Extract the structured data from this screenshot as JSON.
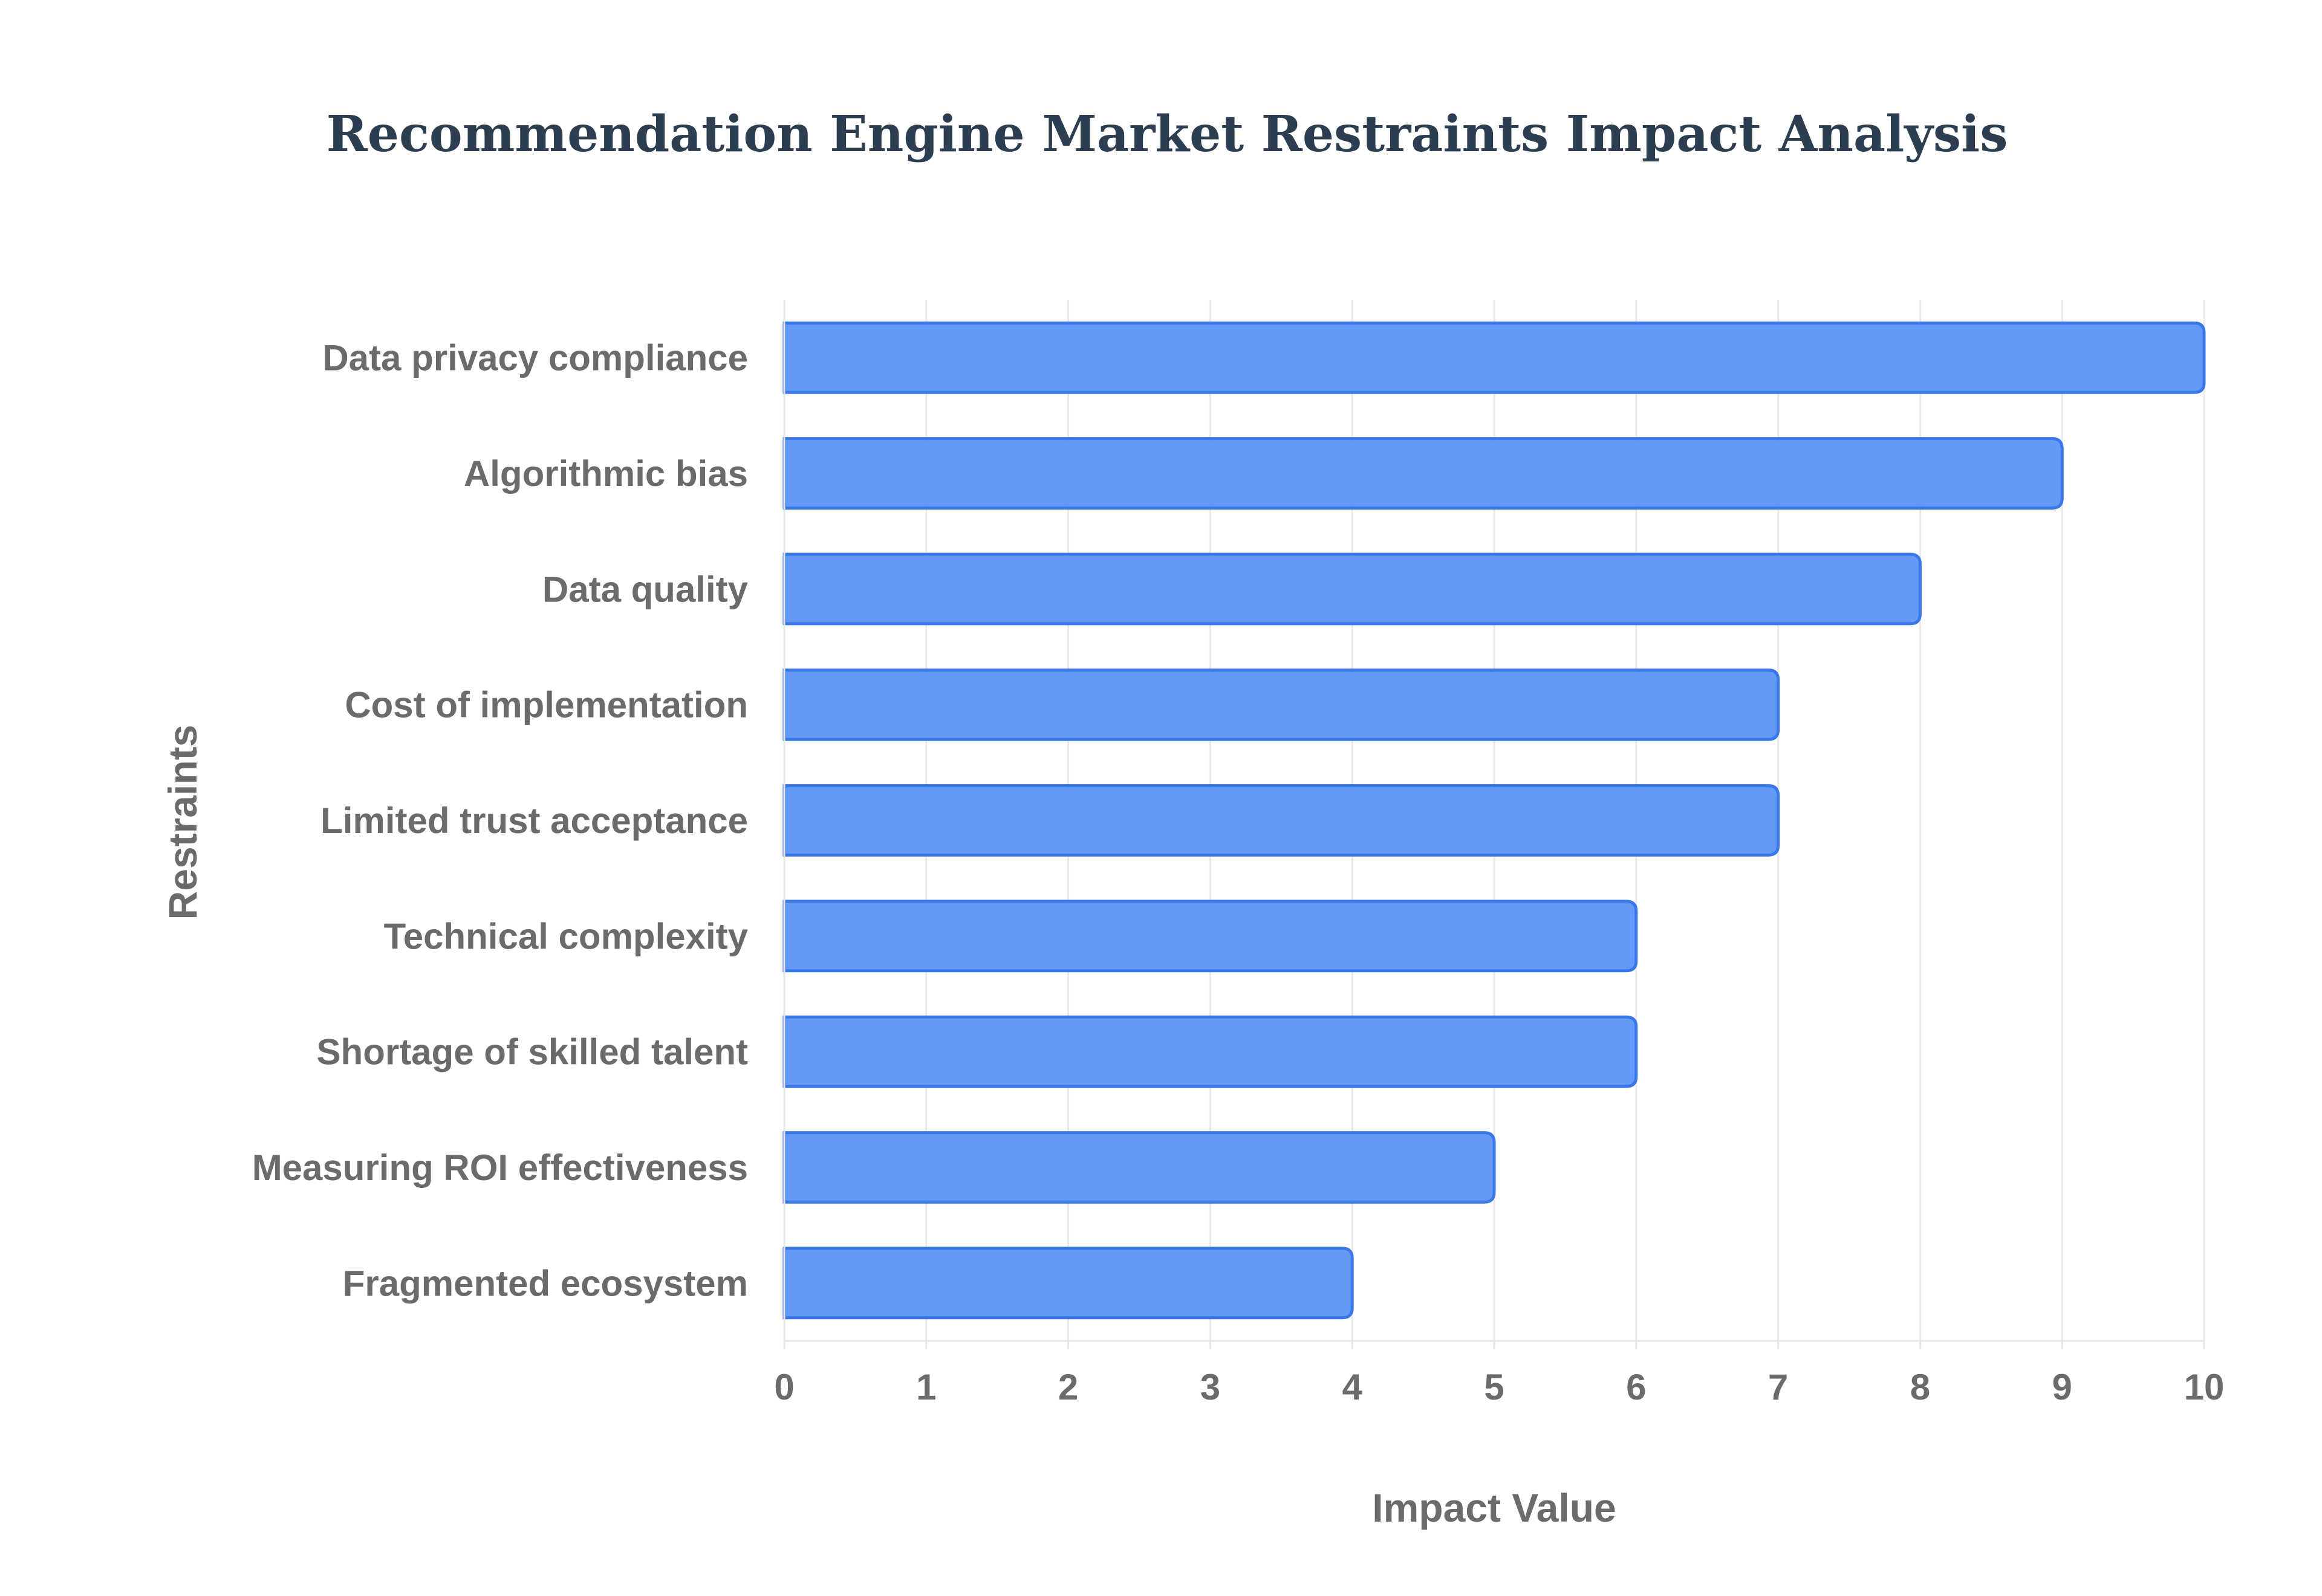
{
  "chart_data": {
    "type": "bar",
    "orientation": "horizontal",
    "title": "Recommendation Engine Market Restraints Impact Analysis",
    "xlabel": "Impact Value",
    "ylabel": "Restraints",
    "xlim": [
      0,
      10
    ],
    "x_ticks": [
      "0",
      "1",
      "2",
      "3",
      "4",
      "5",
      "6",
      "7",
      "8",
      "9",
      "10"
    ],
    "grid": true,
    "legend": "none",
    "bar_color": "#5b95f7",
    "bar_border_color": "#3b78e7",
    "categories": [
      "Data privacy compliance",
      "Algorithmic bias",
      "Data quality",
      "Cost of implementation",
      "Limited trust acceptance",
      "Technical complexity",
      "Shortage of skilled talent",
      "Measuring ROI effectiveness",
      "Fragmented ecosystem"
    ],
    "values": [
      10,
      9,
      8,
      7,
      7,
      6,
      6,
      5,
      4
    ]
  }
}
